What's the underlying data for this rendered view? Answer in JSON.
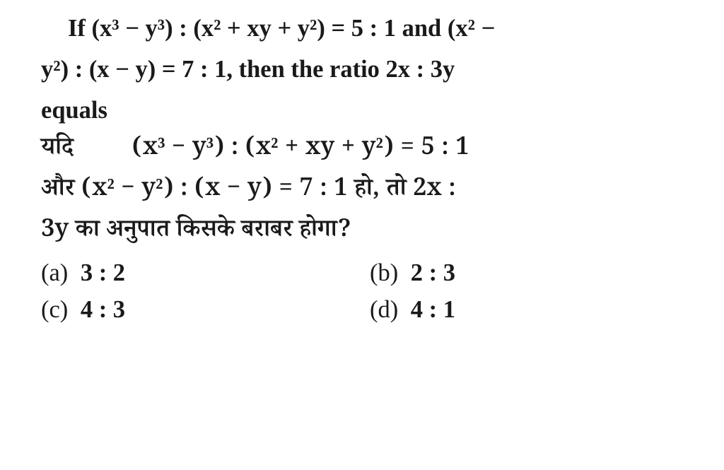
{
  "colors": {
    "background": "#ffffff",
    "text": "#1a1a1a"
  },
  "typography": {
    "base_font_size_pt": 26,
    "line_height": 1.56,
    "weight_body": 600,
    "weight_option_label": 400,
    "family_latin": "Georgia / Times New Roman, serif",
    "family_devanagari": "Noto Serif Devanagari / Mangal"
  },
  "question_en": {
    "line1": "If (x³ − y³) : (x² + xy + y²) = 5 : 1 and (x² −",
    "line2": "y²) : (x − y) = 7 : 1, then the ratio 2x : 3y",
    "line3": "equals"
  },
  "question_hi": {
    "line1_pre": "यदि",
    "line1_math": "(x³ − y³) : (x² + xy + y²) = 5 : 1",
    "line2": "और (x² − y²) : (x − y) = 7 : 1 हो, तो 2x :",
    "line3": "3y का अनुपात किसके बराबर होगा?"
  },
  "options": {
    "a": {
      "label": "(a)",
      "value": "3 : 2"
    },
    "b": {
      "label": "(b)",
      "value": "2 : 3"
    },
    "c": {
      "label": "(c)",
      "value": "4 : 3"
    },
    "d": {
      "label": "(d)",
      "value": "4 : 1"
    }
  }
}
